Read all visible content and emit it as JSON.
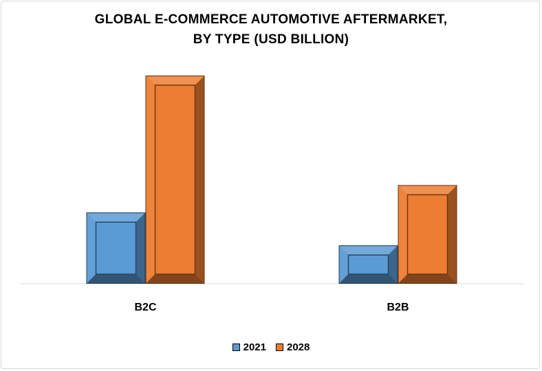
{
  "chart_data": {
    "type": "bar",
    "title_lines": [
      "GLOBAL E-COMMERCE AUTOMOTIVE AFTERMARKET,",
      "BY TYPE (USD BILLION)"
    ],
    "categories": [
      "B2C",
      "B2B"
    ],
    "series": [
      {
        "name": "2021",
        "values": [
          26,
          14
        ],
        "color": "#5b9bd5"
      },
      {
        "name": "2028",
        "values": [
          76,
          36
        ],
        "color": "#ed7d31"
      }
    ],
    "ylim": [
      0,
      80
    ],
    "grid": false,
    "legend": "bottom"
  }
}
